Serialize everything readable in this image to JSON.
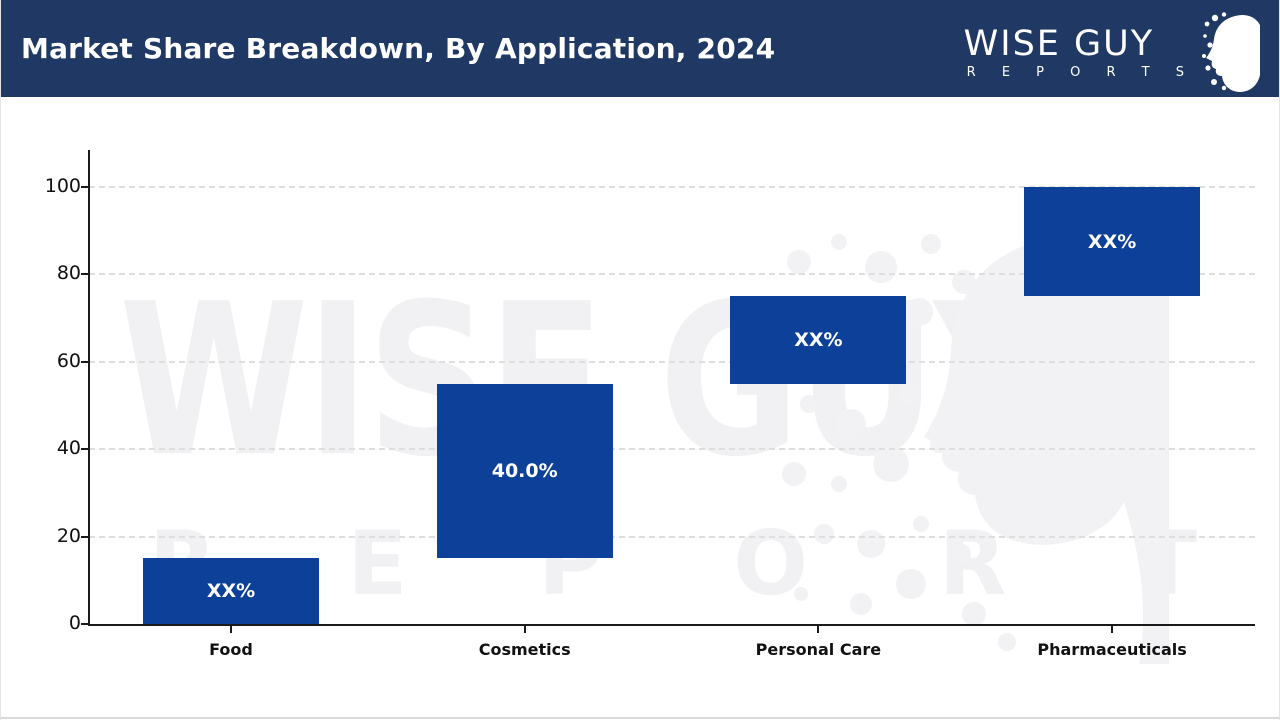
{
  "header": {
    "title": "Market Share Breakdown, By Application, 2024",
    "logo": {
      "brand_line1": "WISE GUY",
      "brand_line2": "R E P O R T S",
      "face_icon": "dotted-head-profile-icon"
    }
  },
  "watermark": {
    "line1": "WISE GUY",
    "line2": "R E P O R T S",
    "face_icon": "dotted-head-profile-watermark"
  },
  "chart_data": {
    "type": "bar",
    "subtype": "floating-waterfall",
    "title": "Market Share Breakdown, By Application, 2024",
    "categories": [
      "Food",
      "Cosmetics",
      "Personal Care",
      "Pharmaceuticals"
    ],
    "segments": [
      {
        "category": "Food",
        "start": 0,
        "end": 15,
        "label": "XX%"
      },
      {
        "category": "Cosmetics",
        "start": 15,
        "end": 55,
        "label": "40.0%"
      },
      {
        "category": "Personal Care",
        "start": 55,
        "end": 75,
        "label": "XX%"
      },
      {
        "category": "Pharmaceuticals",
        "start": 75,
        "end": 100,
        "label": "XX%"
      }
    ],
    "values": [
      15,
      40,
      20,
      25
    ],
    "value_labels": [
      "XX%",
      "40.0%",
      "XX%",
      "XX%"
    ],
    "xlabel": "",
    "ylabel": "",
    "ylim": [
      0,
      100
    ],
    "yticks": [
      0,
      20,
      40,
      60,
      80,
      100
    ],
    "grid": {
      "horizontal": true,
      "style": "dashed",
      "color": "#dedede"
    },
    "legend": "none",
    "colors": {
      "bar": "#0d4199",
      "bar_label": "#ffffff",
      "axis": "#1a1a1a",
      "header_bg": "#1f3864",
      "header_text": "#ffffff",
      "watermark": "#f1f1f3"
    }
  }
}
